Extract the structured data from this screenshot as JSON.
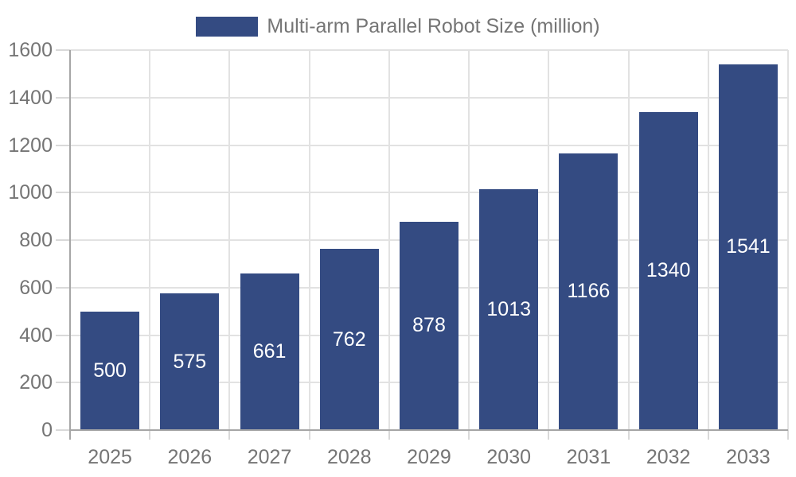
{
  "chart_data": {
    "type": "bar",
    "title": "Multi-arm Parallel Robot Size (million)",
    "legend": {
      "label": "Multi-arm Parallel Robot Size (million)",
      "position": "top-center"
    },
    "categories": [
      "2025",
      "2026",
      "2027",
      "2028",
      "2029",
      "2030",
      "2031",
      "2032",
      "2033"
    ],
    "series": [
      {
        "name": "Multi-arm Parallel Robot Size (million)",
        "values": [
          500,
          575,
          661,
          762,
          878,
          1013,
          1166,
          1340,
          1541
        ]
      }
    ],
    "value_labels_shown": true,
    "xlabel": "",
    "ylabel": "",
    "ylim": [
      0,
      1600
    ],
    "yticks": [
      0,
      200,
      400,
      600,
      800,
      1000,
      1200,
      1400,
      1600
    ],
    "grid": true,
    "colors": {
      "bar": "#344B82",
      "grid": "#e2e2e2",
      "tick": "#d9d9d9",
      "axis": "#a6a6a6",
      "tick_label": "#757575",
      "legend_label": "#757575",
      "value_label": "#ffffff",
      "background": "#ffffff"
    }
  }
}
